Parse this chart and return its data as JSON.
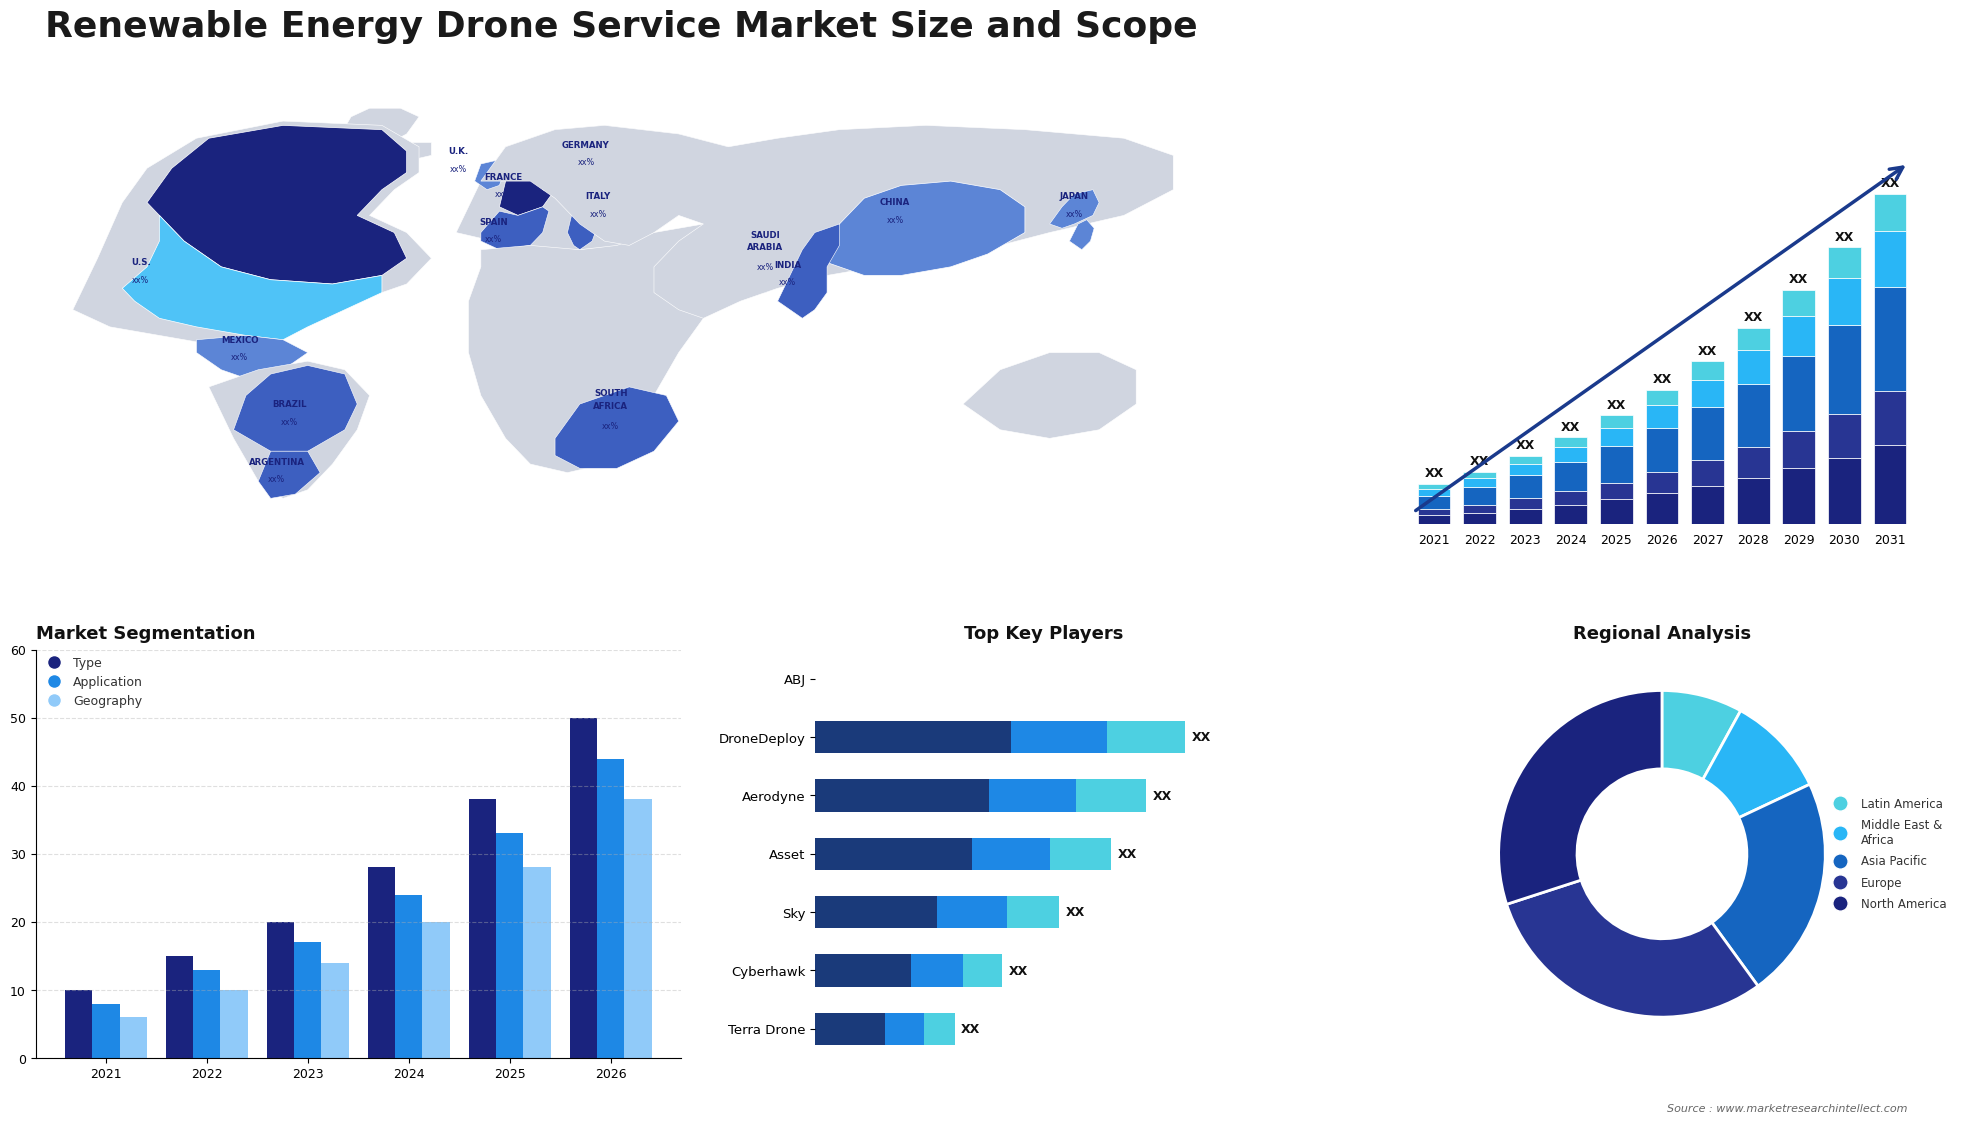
{
  "title": "Renewable Energy Drone Service Market Size and Scope",
  "title_fontsize": 26,
  "background_color": "#ffffff",
  "bar_chart": {
    "years": [
      "2021",
      "2022",
      "2023",
      "2024",
      "2025",
      "2026",
      "2027",
      "2028",
      "2029",
      "2030",
      "2031"
    ],
    "segments": {
      "North America": {
        "values": [
          1.0,
          1.3,
          1.7,
          2.2,
          2.8,
          3.5,
          4.3,
          5.2,
          6.3,
          7.5,
          9.0
        ],
        "color": "#1a237e"
      },
      "Europe": {
        "values": [
          0.7,
          0.9,
          1.2,
          1.5,
          1.9,
          2.4,
          2.9,
          3.5,
          4.2,
          5.0,
          6.0
        ],
        "color": "#283593"
      },
      "Asia Pacific": {
        "values": [
          1.5,
          2.0,
          2.6,
          3.3,
          4.1,
          5.0,
          6.0,
          7.2,
          8.5,
          10.0,
          11.8
        ],
        "color": "#1565c0"
      },
      "Middle East & Africa": {
        "values": [
          0.8,
          1.0,
          1.3,
          1.7,
          2.1,
          2.6,
          3.1,
          3.8,
          4.5,
          5.3,
          6.3
        ],
        "color": "#29b6f6"
      },
      "Latin America": {
        "values": [
          0.5,
          0.7,
          0.9,
          1.1,
          1.4,
          1.7,
          2.1,
          2.5,
          3.0,
          3.5,
          4.2
        ],
        "color": "#4dd0e1"
      }
    }
  },
  "segmentation_chart": {
    "years": [
      "2021",
      "2022",
      "2023",
      "2024",
      "2025",
      "2026"
    ],
    "type_values": [
      10,
      15,
      20,
      28,
      38,
      50
    ],
    "app_values": [
      8,
      13,
      17,
      24,
      33,
      44
    ],
    "geo_values": [
      6,
      10,
      14,
      20,
      28,
      38
    ],
    "type_color": "#1a237e",
    "app_color": "#1e88e5",
    "geo_color": "#90caf9",
    "ylim": [
      0,
      60
    ],
    "yticks": [
      0,
      10,
      20,
      30,
      40,
      50,
      60
    ]
  },
  "key_players": {
    "names": [
      "ABJ",
      "DroneDeploy",
      "Aerodyne",
      "Asset",
      "Sky",
      "Cyberhawk",
      "Terra Drone"
    ],
    "seg1": [
      0,
      45,
      40,
      36,
      28,
      22,
      16
    ],
    "seg2": [
      0,
      22,
      20,
      18,
      16,
      12,
      9
    ],
    "seg3": [
      0,
      18,
      16,
      14,
      12,
      9,
      7
    ],
    "color1": "#1a3a7a",
    "color2": "#1e88e5",
    "color3": "#4dd0e1"
  },
  "donut_chart": {
    "slices": [
      8,
      10,
      22,
      30,
      30
    ],
    "colors": [
      "#4dd0e1",
      "#29b6f6",
      "#1565c0",
      "#283593",
      "#1a237e"
    ],
    "labels": [
      "Latin America",
      "Middle East &\nAfrica",
      "Asia Pacific",
      "Europe",
      "North America"
    ]
  },
  "country_colors": {
    "canada": "#1a237e",
    "usa": "#4fc3f7",
    "mexico": "#5c85d6",
    "brazil": "#3d5fc0",
    "argentina": "#3d5fc0",
    "uk": "#5c85d6",
    "france": "#1a237e",
    "spain": "#3d5fc0",
    "germany": "#5c85d6",
    "italy": "#3d5fc0",
    "saudi_arabia": "#5c85d6",
    "south_africa": "#3d5fc0",
    "china": "#5c85d6",
    "india": "#3d5fc0",
    "japan": "#5c85d6",
    "other_land": "#d0d5e0"
  },
  "source_text": "Source : www.marketresearchintellect.com"
}
